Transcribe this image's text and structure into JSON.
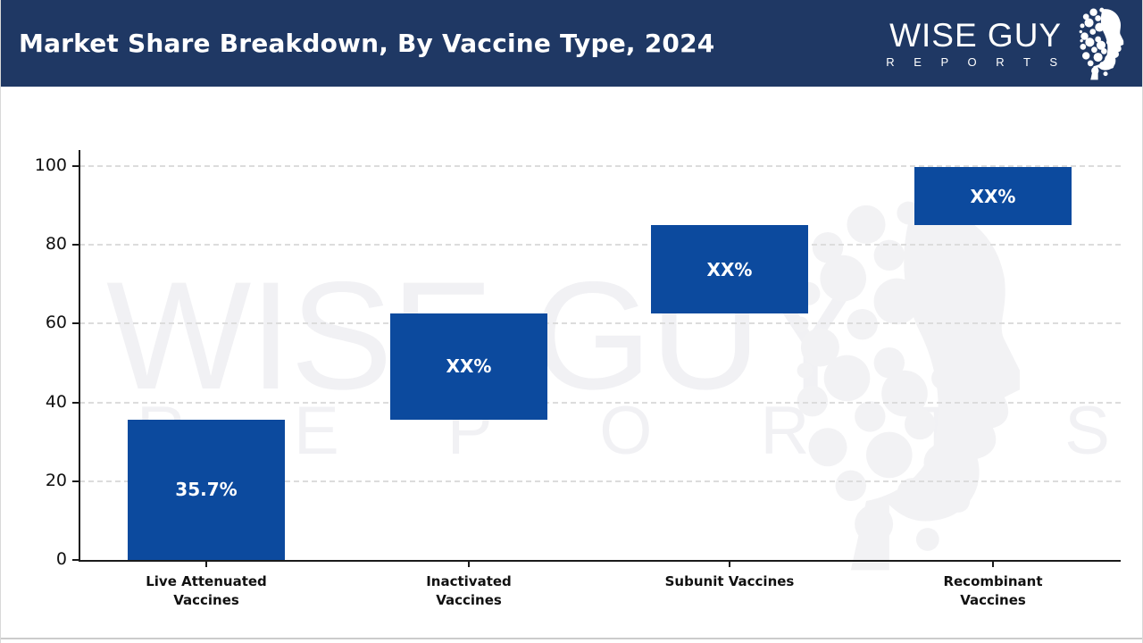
{
  "header": {
    "title": "Market Share Breakdown, By Vaccine Type, 2024",
    "logo": {
      "line1": "WISE GUY",
      "line2": "R E P O R T S"
    }
  },
  "watermark": {
    "line1": "WISE GUY",
    "line2": "R E P O R T S"
  },
  "chart_data": {
    "type": "bar",
    "subtype": "waterfall",
    "title": "Market Share Breakdown, By Vaccine Type, 2024",
    "categories": [
      "Live Attenuated\nVaccines",
      "Inactivated\nVaccines",
      "Subunit Vaccines",
      "Recombinant\nVaccines"
    ],
    "bars": [
      {
        "category": "Live Attenuated Vaccines",
        "start": 0,
        "end": 35.7,
        "label": "35.7%"
      },
      {
        "category": "Inactivated Vaccines",
        "start": 35.7,
        "end": 62.5,
        "label": "XX%"
      },
      {
        "category": "Subunit Vaccines",
        "start": 62.5,
        "end": 85,
        "label": "XX%"
      },
      {
        "category": "Recombinant Vaccines",
        "start": 85,
        "end": 99.8,
        "label": "XX%"
      }
    ],
    "ylim": [
      0,
      100
    ],
    "yticks": [
      0,
      20,
      40,
      60,
      80,
      100
    ],
    "xlabel": "",
    "ylabel": "",
    "grid": "horizontal-dashed",
    "legend": "none"
  },
  "colors": {
    "header_bg": "#1f3864",
    "bar": "#0c4a9e",
    "bar_label": "#ffffff",
    "watermark": "#f1f1f4",
    "grid": "#dcdcdc",
    "axis": "#1a1a1a"
  }
}
